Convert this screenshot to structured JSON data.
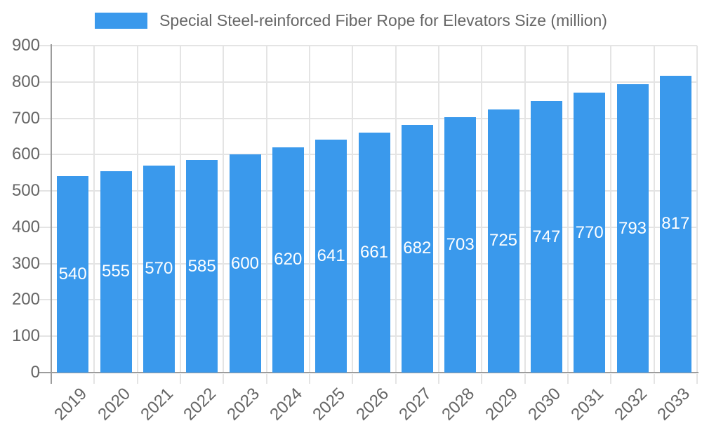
{
  "chart_data": {
    "type": "bar",
    "series_label": "Special Steel-reinforced Fiber Rope for Elevators Size (million)",
    "categories": [
      "2019",
      "2020",
      "2021",
      "2022",
      "2023",
      "2024",
      "2025",
      "2026",
      "2027",
      "2028",
      "2029",
      "2030",
      "2031",
      "2032",
      "2033"
    ],
    "values": [
      540,
      555,
      570,
      585,
      600,
      620,
      641,
      661,
      682,
      703,
      725,
      747,
      770,
      793,
      817
    ],
    "xlabel": "",
    "ylabel": "",
    "ylim": [
      0,
      900
    ],
    "yticks": [
      0,
      100,
      200,
      300,
      400,
      500,
      600,
      700,
      800,
      900
    ],
    "grid": true,
    "legend_position": "top",
    "value_label_position": "center-inside",
    "colors": {
      "bar": "#3A99EC",
      "grid": "#E4E4E4",
      "axis": "#9C9C9C",
      "text": "#666666",
      "value_label": "#FFFFFF"
    }
  }
}
